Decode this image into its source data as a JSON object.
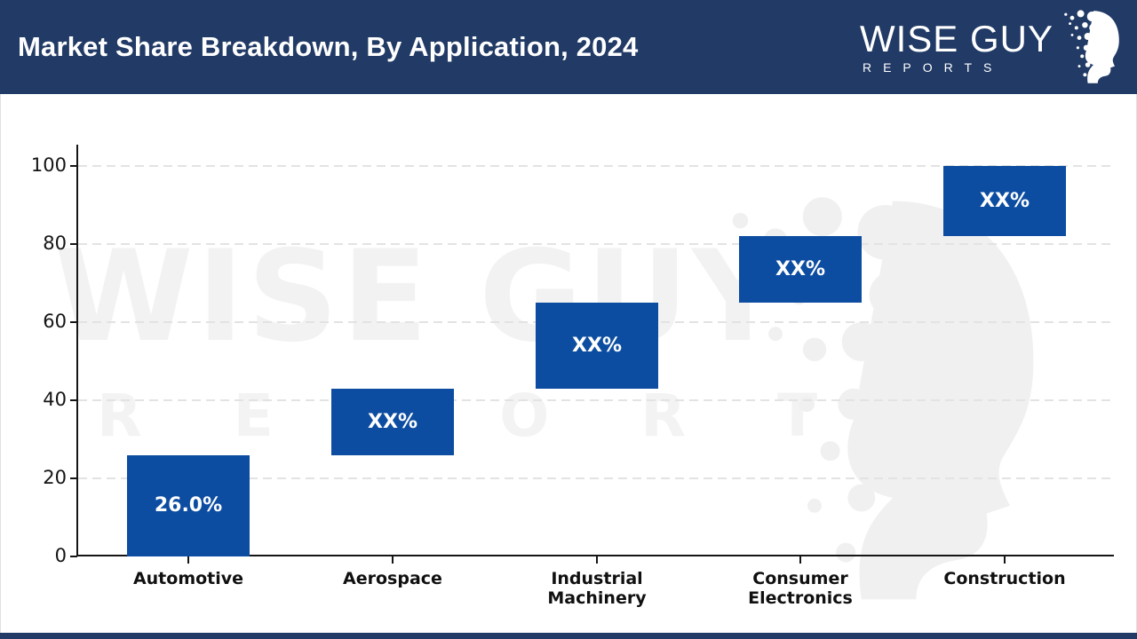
{
  "header": {
    "title": "Market Share Breakdown, By Application, 2024"
  },
  "logo": {
    "line1": "WISE GUY",
    "line2": "REPORTS"
  },
  "watermark": {
    "line1": "WISE GUY",
    "line2": "R E P O R T S"
  },
  "chart_data": {
    "type": "bar",
    "subtype": "waterfall",
    "title": "Market Share Breakdown, By Application, 2024",
    "categories": [
      "Automotive",
      "Aerospace",
      "Industrial Machinery",
      "Consumer Electronics",
      "Construction"
    ],
    "category_label_lines": [
      [
        "Automotive"
      ],
      [
        "Aerospace"
      ],
      [
        "Industrial",
        "Machinery"
      ],
      [
        "Consumer",
        "Electronics"
      ],
      [
        "Construction"
      ]
    ],
    "segments": [
      {
        "category": "Automotive",
        "start": 0,
        "end": 26,
        "label": "26.0%"
      },
      {
        "category": "Aerospace",
        "start": 26,
        "end": 43,
        "label": "XX%"
      },
      {
        "category": "Industrial Machinery",
        "start": 43,
        "end": 65,
        "label": "XX%"
      },
      {
        "category": "Consumer Electronics",
        "start": 65,
        "end": 82,
        "label": "XX%"
      },
      {
        "category": "Construction",
        "start": 82,
        "end": 100,
        "label": "XX%"
      }
    ],
    "yticks": [
      0,
      20,
      40,
      60,
      80,
      100
    ],
    "ylim": [
      0,
      100
    ],
    "xlabel": "",
    "ylabel": "",
    "grid": "horizontal-dashed",
    "legend": "none",
    "bar_color": "#0d4da1",
    "bar_label_color": "#ffffff"
  },
  "colors": {
    "header_bg": "#213a66",
    "footer_bg": "#213a66",
    "bar": "#0d4da1",
    "grid": "#e3e3e3",
    "axis": "#151515",
    "watermark": "#f2f2f2"
  }
}
